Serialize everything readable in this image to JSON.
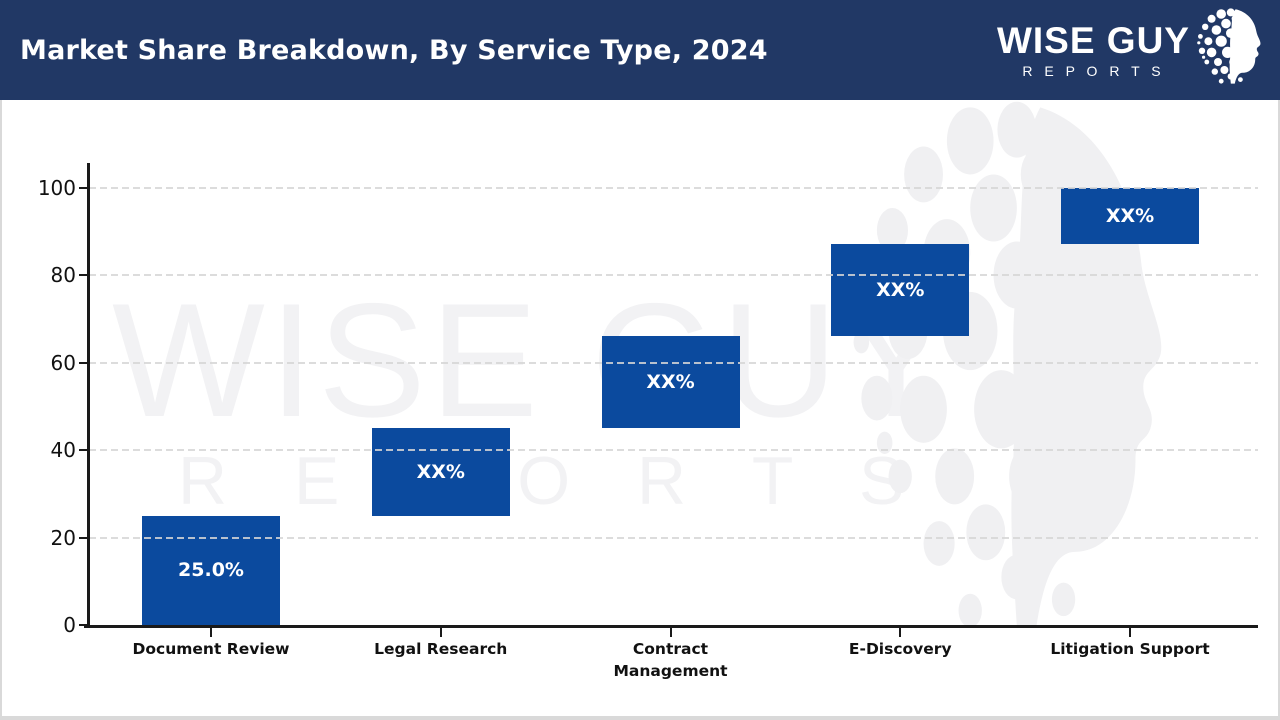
{
  "header": {
    "title": "Market Share Breakdown, By Service Type, 2024",
    "bg_color": "#213865",
    "logo": {
      "name_line": "WISE GUY",
      "reports_line": "R E P O R T S"
    }
  },
  "watermark": {
    "name_line": "WISE GUY",
    "reports_line": "R E P O R T S"
  },
  "chart_data": {
    "type": "bar",
    "subtype": "waterfall-floating-bars",
    "title": "Market Share Breakdown, By Service Type, 2024",
    "categories": [
      "Document Review",
      "Legal Research",
      "Contract\nManagement",
      "E-Discovery",
      "Litigation Support"
    ],
    "segments": [
      {
        "category": "Document Review",
        "label": "25.0%",
        "start": 0,
        "end": 25
      },
      {
        "category": "Legal Research",
        "label": "XX%",
        "start": 25,
        "end": 45
      },
      {
        "category": "Contract Management",
        "label": "XX%",
        "start": 45,
        "end": 66
      },
      {
        "category": "E-Discovery",
        "label": "XX%",
        "start": 66,
        "end": 87
      },
      {
        "category": "Litigation Support",
        "label": "XX%",
        "start": 87,
        "end": 100
      }
    ],
    "y_ticks": [
      0,
      20,
      40,
      60,
      80,
      100
    ],
    "ylim": [
      0,
      105.7
    ],
    "xlabel": "",
    "ylabel": "",
    "legend": "none",
    "grid": {
      "axis": "y",
      "style": "dashed",
      "color": "#d9d9d9"
    },
    "bar_color": "#0b4a9e",
    "bar_label_color": "#ffffff",
    "axis_color": "#1a1a1a"
  }
}
